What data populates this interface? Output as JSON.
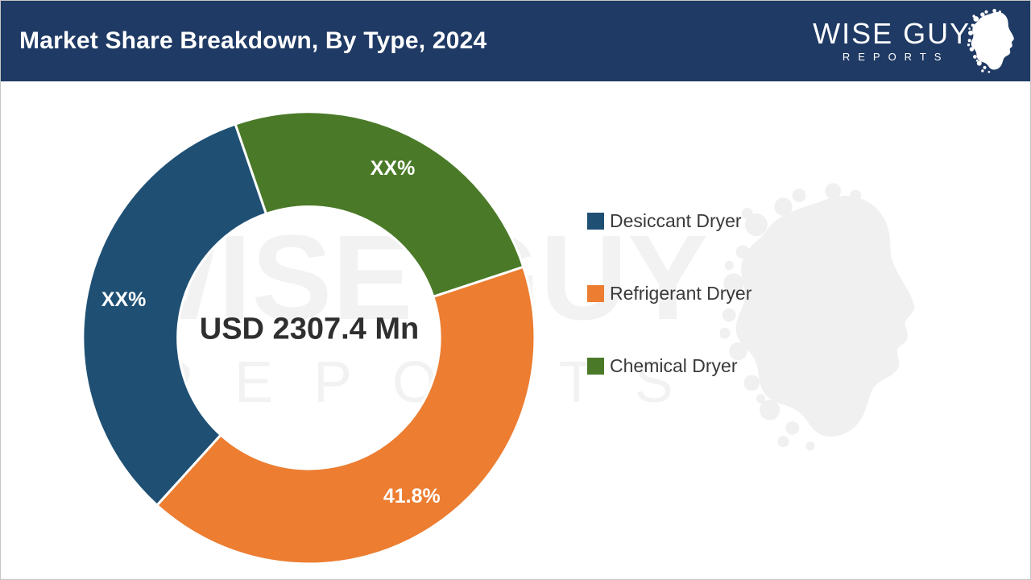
{
  "header": {
    "title": "Market Share Breakdown, By Type, 2024",
    "logo": {
      "line1": "WISE GUY",
      "line2": "REPORTS"
    }
  },
  "watermark": {
    "line1": "WISE GUY",
    "line2": "REPORTS"
  },
  "chart_data": {
    "type": "donut",
    "title": "Market Share Breakdown, By Type, 2024",
    "center_label": "USD 2307.4 Mn",
    "start_angle_deg_clockwise_from_top": -19,
    "legend_position": "right",
    "segments": [
      {
        "label": "Chemical Dryer",
        "display_value": "XX%",
        "value_pct": 25.2,
        "color": "#4A7A28"
      },
      {
        "label": "Refrigerant Dryer",
        "display_value": "41.8%",
        "value_pct": 41.8,
        "color": "#EC7D31"
      },
      {
        "label": "Desiccant Dryer",
        "display_value": "XX%",
        "value_pct": 33.0,
        "color": "#1F5074"
      }
    ]
  },
  "legend": {
    "items": [
      {
        "label": "Desiccant Dryer",
        "color": "#1F5074"
      },
      {
        "label": "Refrigerant Dryer",
        "color": "#EC7D31"
      },
      {
        "label": "Chemical Dryer",
        "color": "#4A7A28"
      }
    ]
  },
  "colors": {
    "header_bg": "#1F3A64",
    "page_border": "#C6C6C6",
    "center_text": "#2F2F2F",
    "legend_text": "#3A3A3A",
    "watermark": "#F2F2F2",
    "segment_separator": "#FFFFFF"
  }
}
